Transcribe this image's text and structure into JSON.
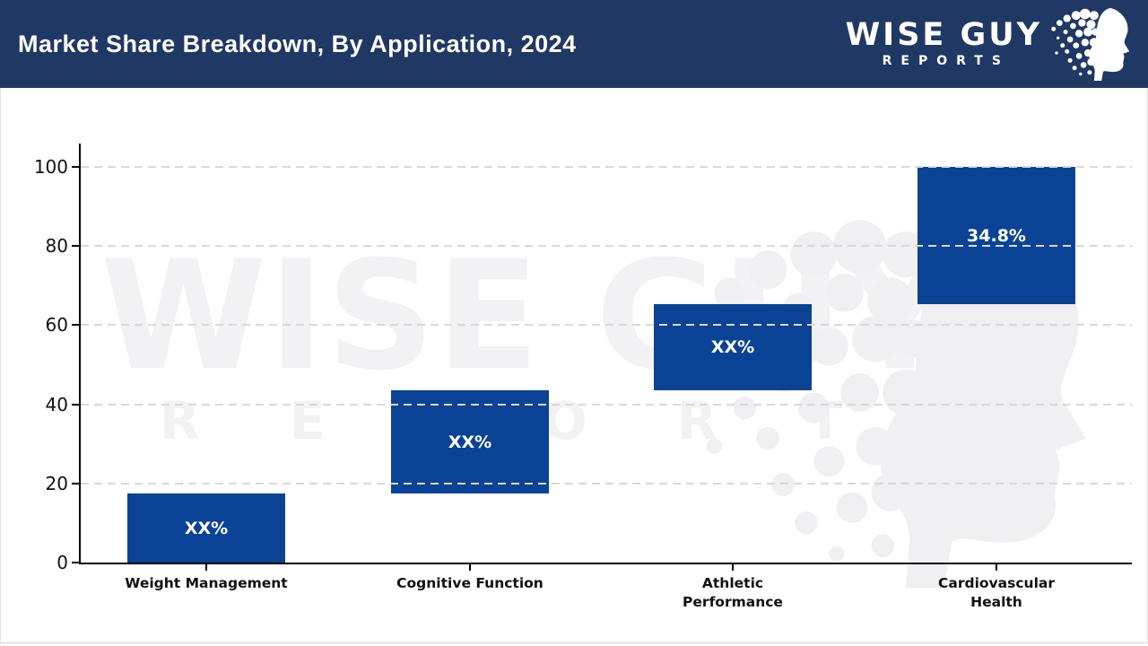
{
  "header": {
    "title": "Market Share Breakdown, By Application, 2024",
    "logo": {
      "line1": "WISE GUY",
      "line2": "REPORTS"
    }
  },
  "watermark": {
    "line1": "WISE GUY",
    "line2": "R E P O R T S"
  },
  "colors": {
    "header_bg": "#203864",
    "bar": "#0a4396",
    "bar_label": "#ffffff",
    "grid": "#d9d9d9",
    "axis": "#000000",
    "watermark": "#f2f2f4"
  },
  "chart_data": {
    "type": "bar",
    "subtype": "floating-waterfall",
    "title": "Market Share Breakdown, By Application, 2024",
    "categories": [
      "Weight Management",
      "Cognitive Function",
      "Athletic Performance",
      "Cardiovascular Health"
    ],
    "category_label_lines": [
      [
        "Weight Management"
      ],
      [
        "Cognitive Function"
      ],
      [
        "Athletic",
        "Performance"
      ],
      [
        "Cardiovascular",
        "Health"
      ]
    ],
    "segments": [
      {
        "category": "Weight Management",
        "start": 0,
        "end": 17.4,
        "value": 17.4,
        "label": "XX%"
      },
      {
        "category": "Cognitive Function",
        "start": 17.4,
        "end": 43.5,
        "value": 26.1,
        "label": "XX%"
      },
      {
        "category": "Athletic Performance",
        "start": 43.5,
        "end": 65.2,
        "value": 21.7,
        "label": "XX%"
      },
      {
        "category": "Cardiovascular Health",
        "start": 65.2,
        "end": 100,
        "value": 34.8,
        "label": "34.8%"
      }
    ],
    "yticks": [
      0,
      20,
      40,
      60,
      80,
      100
    ],
    "ylim": [
      0,
      106
    ],
    "xlabel": "",
    "ylabel": "",
    "legend": "none",
    "grid": {
      "horizontal": true,
      "style": "dashed",
      "drawn_on_top": true
    },
    "bar_color": "#0a4396",
    "bar_label_color": "#ffffff"
  }
}
